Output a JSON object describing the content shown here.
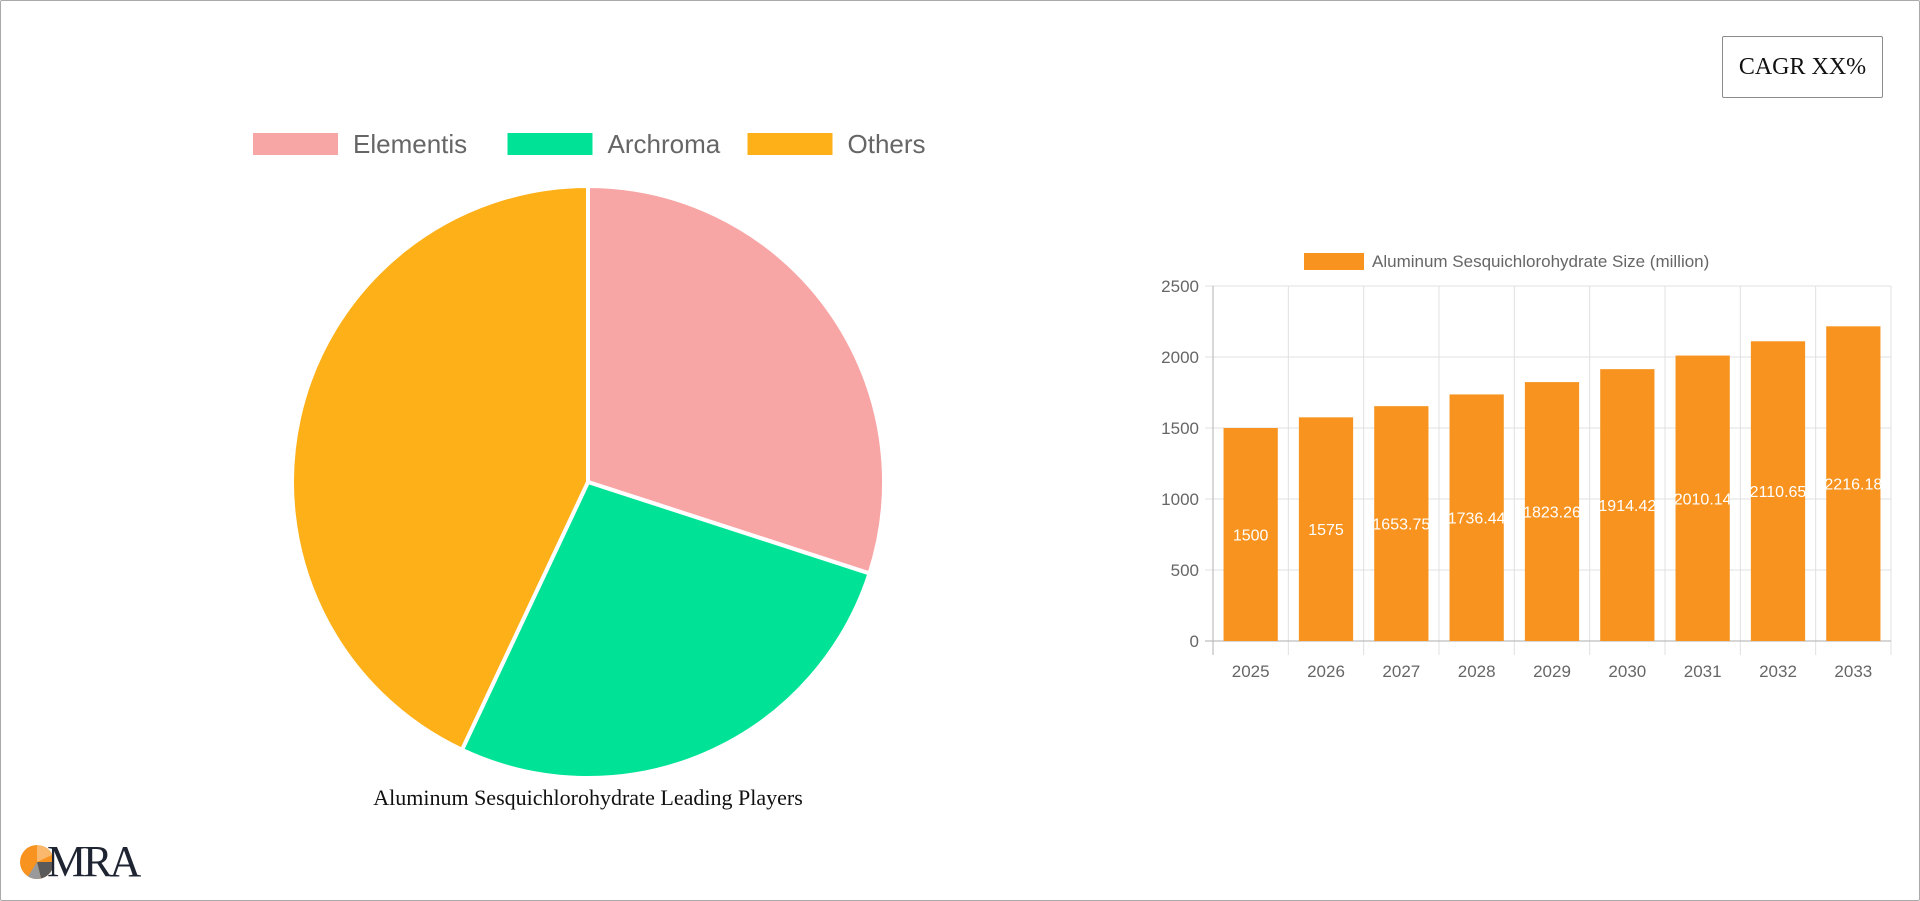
{
  "cagr": {
    "label": "CAGR XX%"
  },
  "pie": {
    "caption": "Aluminum Sesquichlorohydrate Leading Players"
  },
  "logo": {
    "text": "MRA",
    "icon": "mra-pie-logo-icon"
  },
  "colors": {
    "elementis": "#f8a5a5",
    "archroma": "#00e396",
    "others": "#feb019",
    "bar": "#f7931e",
    "grid": "#e0e0e0",
    "axis_text": "#666666"
  },
  "chart_data": [
    {
      "type": "pie",
      "title": "Aluminum Sesquichlorohydrate Leading Players",
      "legend_position": "top",
      "labels": [
        "Elementis",
        "Archroma",
        "Others"
      ],
      "values": [
        30,
        27,
        43
      ],
      "colors": [
        "#f8a5a5",
        "#00e396",
        "#feb019"
      ]
    },
    {
      "type": "bar",
      "legend_position": "top",
      "categories": [
        "2025",
        "2026",
        "2027",
        "2028",
        "2029",
        "2030",
        "2031",
        "2032",
        "2033"
      ],
      "series": [
        {
          "name": "Aluminum Sesquichlorohydrate Size (million)",
          "values": [
            1500,
            1575,
            1653.75,
            1736.44,
            1823.26,
            1914.42,
            2010.14,
            2110.65,
            2216.18
          ],
          "data_labels": [
            "1500",
            "1575",
            "1653.75",
            "1736.44",
            "1823.26",
            "1914.42",
            "2010.14",
            "2110.65",
            "2216.18"
          ]
        }
      ],
      "ylim": [
        0,
        2500
      ],
      "yticks": [
        0,
        500,
        1000,
        1500,
        2000,
        2500
      ],
      "grid": true
    }
  ]
}
